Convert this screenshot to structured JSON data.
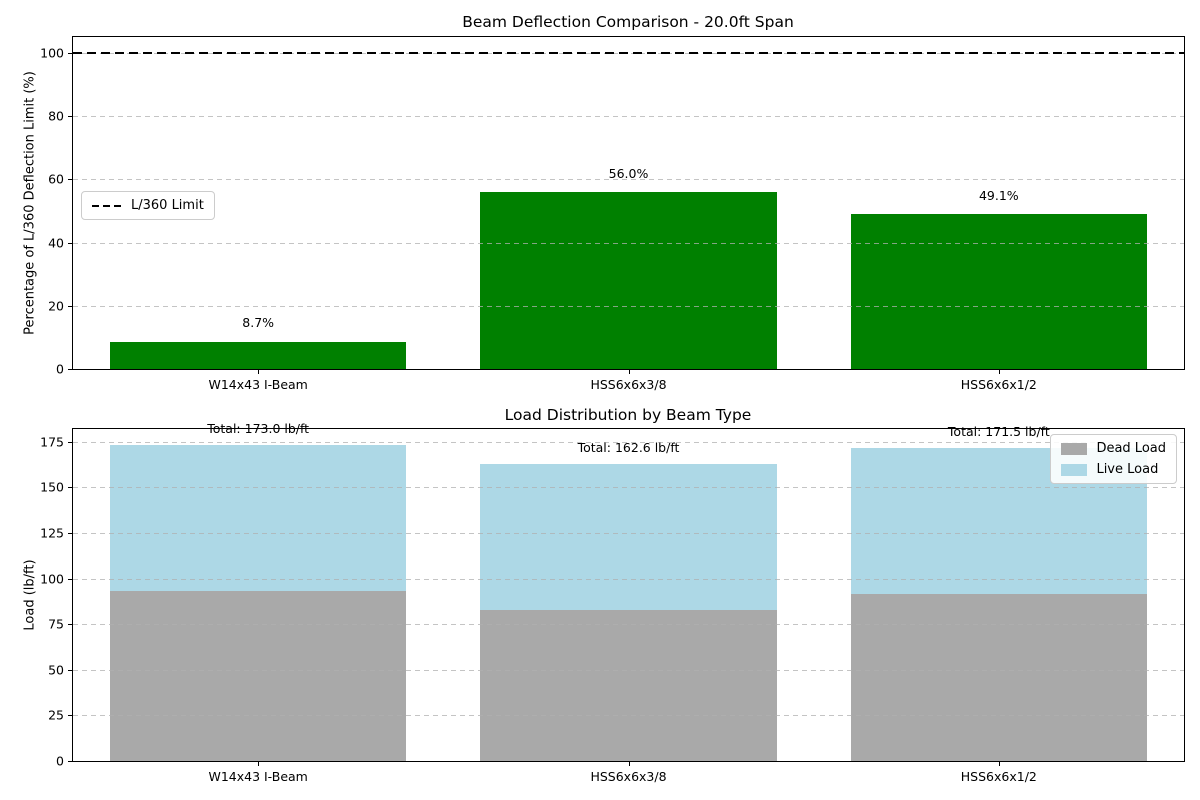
{
  "figure": {
    "background": "#ffffff"
  },
  "chart_data": [
    {
      "id": "deflection-comparison",
      "type": "bar",
      "title": "Beam Deflection Comparison - 20.0ft Span",
      "xlabel": "",
      "ylabel": "Percentage of L/360 Deflection Limit (%)",
      "categories": [
        "W14x43 I-Beam",
        "HSS6x6x3/8",
        "HSS6x6x1/2"
      ],
      "values": [
        8.7,
        56.0,
        49.1
      ],
      "bar_labels": [
        "8.7%",
        "56.0%",
        "49.1%"
      ],
      "bar_color": "#008000",
      "yticks": [
        0,
        20,
        40,
        60,
        80,
        100
      ],
      "ylim": [
        0,
        105
      ],
      "grid": true,
      "limit_line": {
        "value": 100,
        "label": "L/360 Limit",
        "color": "#000000",
        "style": "dashed"
      },
      "legend": {
        "position": "center-left",
        "entries": [
          {
            "label": "L/360 Limit",
            "marker": "dashed-line",
            "color": "#000000"
          }
        ]
      }
    },
    {
      "id": "load-distribution",
      "type": "stacked-bar",
      "title": "Load Distribution by Beam Type",
      "xlabel": "",
      "ylabel": "Load (lb/ft)",
      "categories": [
        "W14x43 I-Beam",
        "HSS6x6x3/8",
        "HSS6x6x1/2"
      ],
      "series": [
        {
          "name": "Dead Load",
          "color": "#a9a9a9",
          "values": [
            93.0,
            82.6,
            91.5
          ]
        },
        {
          "name": "Live Load",
          "color": "#add8e6",
          "values": [
            80.0,
            80.0,
            80.0
          ]
        }
      ],
      "totals": [
        173.0,
        162.6,
        171.5
      ],
      "total_labels": [
        "Total: 173.0 lb/ft",
        "Total: 162.6 lb/ft",
        "Total: 171.5 lb/ft"
      ],
      "yticks": [
        0,
        25,
        50,
        75,
        100,
        125,
        150,
        175
      ],
      "ylim": [
        0,
        182
      ],
      "grid": true,
      "legend": {
        "position": "upper-right",
        "entries": [
          {
            "label": "Dead Load",
            "marker": "patch",
            "color": "#a9a9a9"
          },
          {
            "label": "Live Load",
            "marker": "patch",
            "color": "#add8e6"
          }
        ]
      }
    }
  ]
}
